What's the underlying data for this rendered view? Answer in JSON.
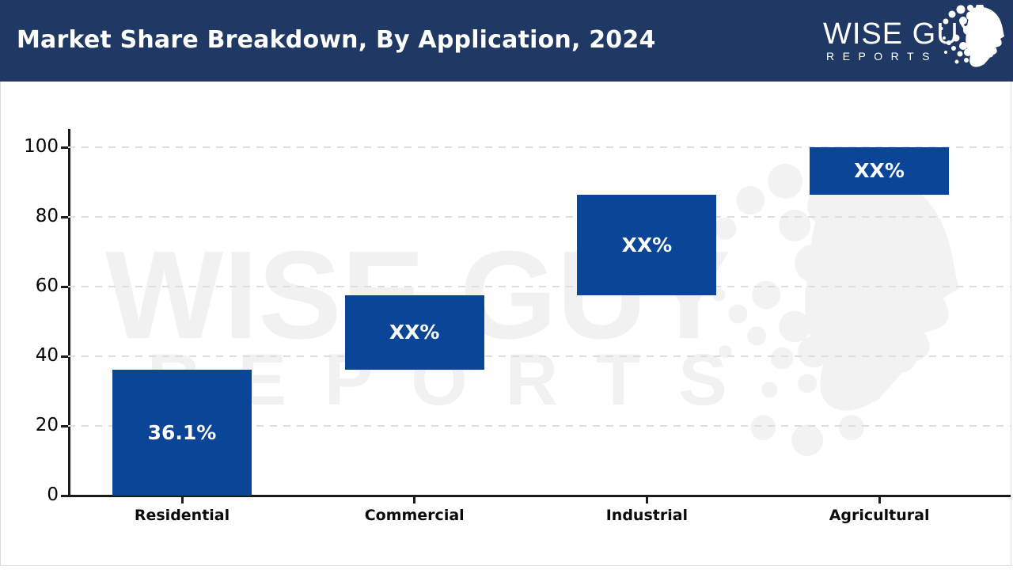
{
  "header": {
    "title": "Market Share Breakdown, By Application, 2024",
    "background_color": "#1f3864"
  },
  "logo": {
    "line1": "WISE GUY",
    "line2": "REPORTS",
    "icon": "dotted-head-profile-icon"
  },
  "watermark": {
    "line1": "WISE GUY",
    "line2": "REPORTS",
    "color": "#f1f1f1"
  },
  "chart_data": {
    "type": "bar",
    "subtype": "floating-waterfall",
    "title": "Market Share Breakdown, By Application, 2024",
    "categories": [
      "Residential",
      "Commercial",
      "Industrial",
      "Agricultural"
    ],
    "segments": [
      {
        "category": "Residential",
        "start": 0,
        "end": 36.1,
        "label": "36.1%"
      },
      {
        "category": "Commercial",
        "start": 36.1,
        "end": 57.6,
        "label": "XX%"
      },
      {
        "category": "Industrial",
        "start": 57.6,
        "end": 86.4,
        "label": "XX%"
      },
      {
        "category": "Agricultural",
        "start": 86.4,
        "end": 100,
        "label": "XX%"
      }
    ],
    "xlabel": "",
    "ylabel": "",
    "yticks": [
      0,
      20,
      40,
      60,
      80,
      100
    ],
    "ylim": [
      0,
      105
    ],
    "bar_color": "#0b4597",
    "axis_color": "#1a1a1a",
    "grid": "horizontal-dashed",
    "gridline_color": "#dedede",
    "legend": "none"
  }
}
